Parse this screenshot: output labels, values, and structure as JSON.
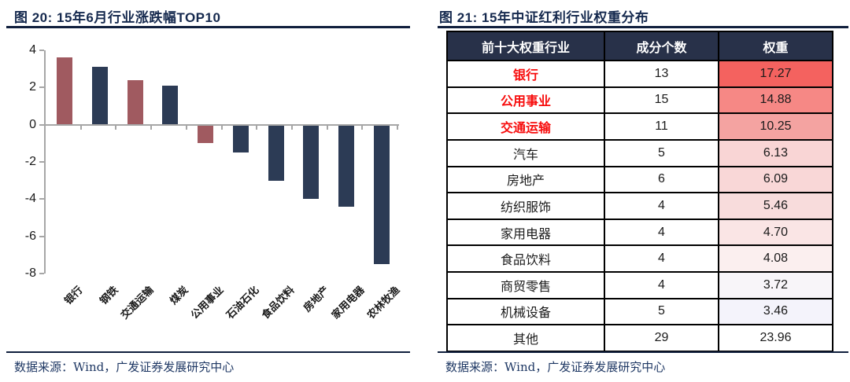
{
  "left_panel": {
    "title": "图 20:  15年6月行业涨跌幅TOP10",
    "source": "数据来源：Wind，广发证券发展研究中心",
    "chart_data": {
      "type": "bar",
      "title": "15年6月行业涨跌幅TOP10",
      "categories": [
        "银行",
        "钢铁",
        "交通运输",
        "煤炭",
        "公用事业",
        "石油石化",
        "食品饮料",
        "房地产",
        "家用电器",
        "农林牧渔"
      ],
      "values": [
        3.6,
        3.1,
        2.4,
        2.1,
        -1.0,
        -1.5,
        -3.0,
        -4.0,
        -4.4,
        -7.5
      ],
      "bar_colors": [
        "#A05A60",
        "#2C3B55",
        "#A05A60",
        "#2C3B55",
        "#A05A60",
        "#2C3B55",
        "#2C3B55",
        "#2C3B55",
        "#2C3B55",
        "#2C3B55"
      ],
      "xlabel": "",
      "ylabel": "",
      "ylim": [
        -8,
        4
      ],
      "yticks": [
        4,
        2,
        0,
        -2,
        -4,
        -6,
        -8
      ],
      "grid": false,
      "legend": "none"
    }
  },
  "right_panel": {
    "title": "图 21:  15年中证红利行业权重分布",
    "source": "数据来源：Wind，广发证券发展研究中心",
    "table": {
      "headers": [
        "前十大权重行业",
        "成分个数",
        "权重"
      ],
      "rows": [
        {
          "industry": "银行",
          "count": "13",
          "weight": "17.27",
          "highlight": true,
          "weight_bg": "#F4625F"
        },
        {
          "industry": "公用事业",
          "count": "15",
          "weight": "14.88",
          "highlight": true,
          "weight_bg": "#F68885"
        },
        {
          "industry": "交通运输",
          "count": "11",
          "weight": "10.25",
          "highlight": true,
          "weight_bg": "#F4A3A1"
        },
        {
          "industry": "汽车",
          "count": "5",
          "weight": "6.13",
          "highlight": false,
          "weight_bg": "#F9D5D5"
        },
        {
          "industry": "房地产",
          "count": "6",
          "weight": "6.09",
          "highlight": false,
          "weight_bg": "#F9D7D7"
        },
        {
          "industry": "纺织服饰",
          "count": "4",
          "weight": "5.46",
          "highlight": false,
          "weight_bg": "#F8DCDC"
        },
        {
          "industry": "家用电器",
          "count": "4",
          "weight": "4.70",
          "highlight": false,
          "weight_bg": "#FAE5E5"
        },
        {
          "industry": "食品饮料",
          "count": "4",
          "weight": "4.08",
          "highlight": false,
          "weight_bg": "#FBEFEF"
        },
        {
          "industry": "商贸零售",
          "count": "4",
          "weight": "3.72",
          "highlight": false,
          "weight_bg": "#F8F5F9"
        },
        {
          "industry": "机械设备",
          "count": "5",
          "weight": "3.46",
          "highlight": false,
          "weight_bg": "#F4F3FB"
        },
        {
          "industry": "其他",
          "count": "29",
          "weight": "23.96",
          "highlight": false,
          "weight_bg": "#FFFFFF"
        }
      ]
    }
  },
  "colors": {
    "title_navy": "#15294E",
    "source_navy": "#1F3864",
    "bar_navy": "#2C3B55",
    "bar_maroon": "#A05A60",
    "table_header_bg": "#283149",
    "highlight_red": "#F70D0D",
    "axis_gray": "#A6A6A6"
  }
}
